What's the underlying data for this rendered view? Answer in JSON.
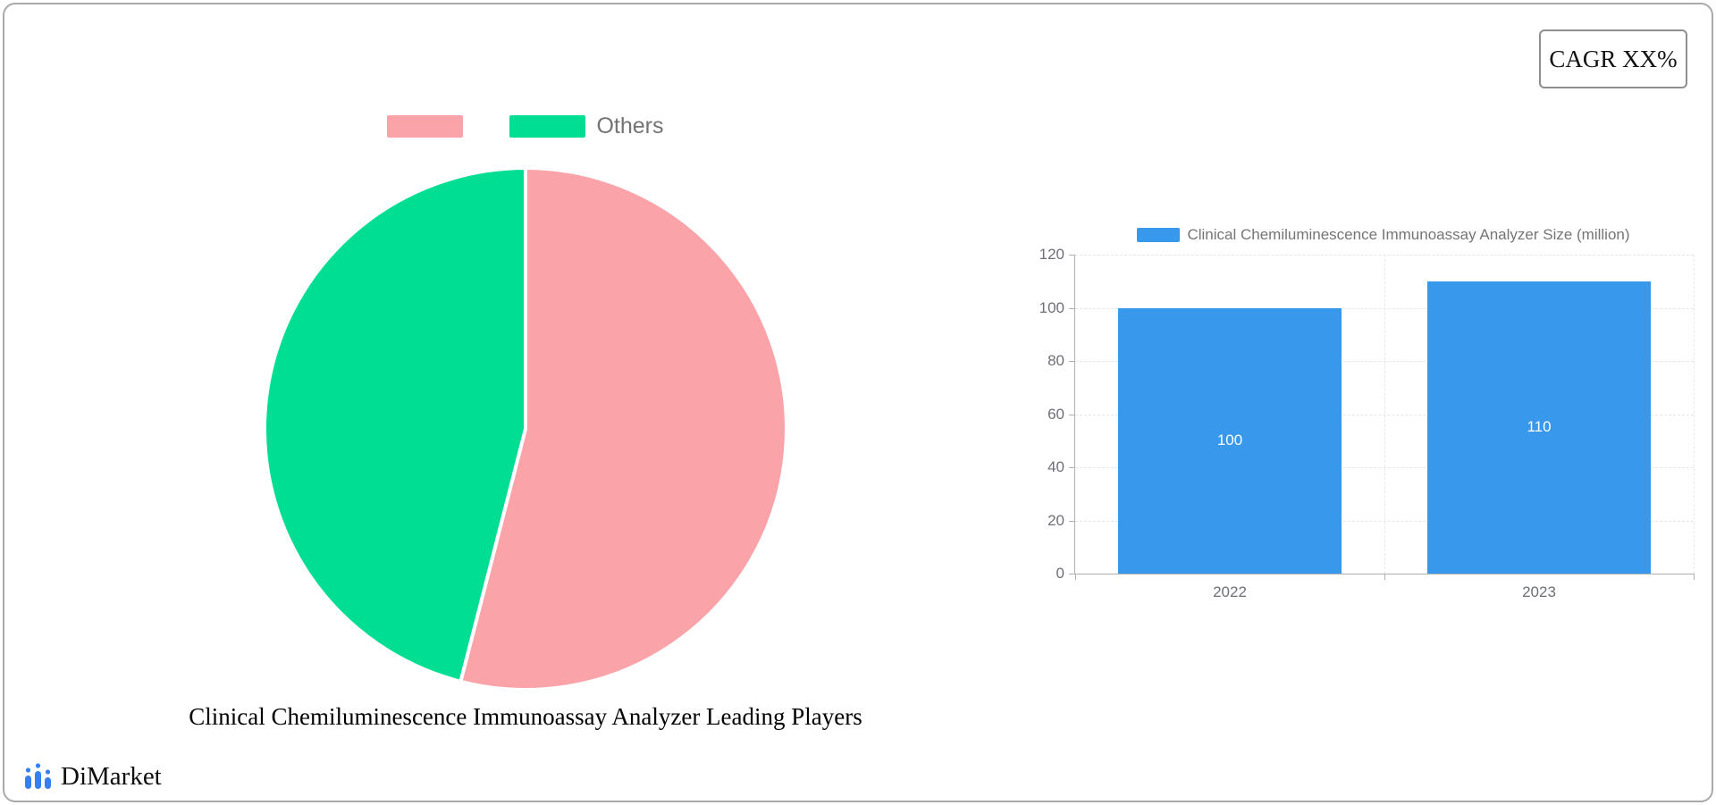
{
  "cagr": {
    "label": "CAGR XX%"
  },
  "brand": {
    "name": "DiMarket"
  },
  "colors": {
    "pie_pink": "#FAA3A9",
    "pie_green": "#00DE93",
    "bar_blue": "#3898EB",
    "logo_blue": "#3580F0"
  },
  "chart_data": [
    {
      "type": "pie",
      "title": "Clinical Chemiluminescence Immunoassay Analyzer Leading Players",
      "start_angle": "top",
      "direction": "clockwise",
      "legend_position": "top",
      "slices": [
        {
          "label": "",
          "value_pct": 54,
          "color": "#FAA3A9"
        },
        {
          "label": "Others",
          "value_pct": 46,
          "color": "#00DE93"
        }
      ]
    },
    {
      "type": "bar",
      "legend": [
        {
          "label": "Clinical Chemiluminescence Immunoassay Analyzer Size (million)",
          "color": "#3898EB"
        }
      ],
      "legend_position": "top",
      "categories": [
        "2022",
        "2023"
      ],
      "series": [
        {
          "name": "Clinical Chemiluminescence Immunoassay Analyzer Size (million)",
          "values": [
            100,
            110
          ]
        }
      ],
      "value_labels": [
        "100",
        "110"
      ],
      "ylim": [
        0,
        120
      ],
      "yticks": [
        0,
        20,
        40,
        60,
        80,
        100,
        120
      ],
      "grid": true
    }
  ]
}
